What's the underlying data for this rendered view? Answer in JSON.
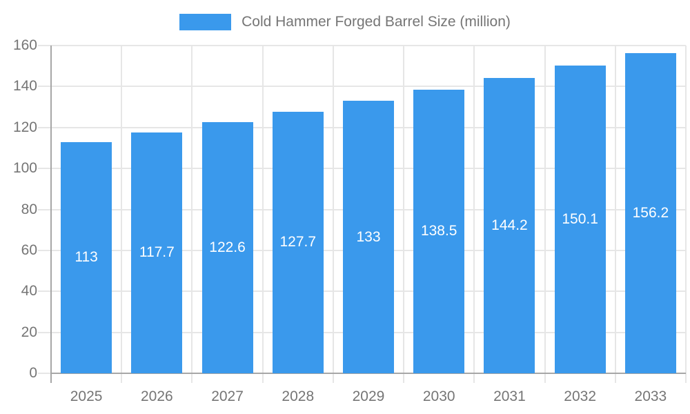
{
  "legend": {
    "label": "Cold Hammer Forged Barrel Size (million)"
  },
  "colors": {
    "bar": "#3a99ec",
    "grid": "#e6e6e6",
    "axis": "#a6a6a6",
    "tick_label": "#757575",
    "bar_label": "#ffffff",
    "legend_text": "#757575",
    "background": "#ffffff"
  },
  "chart_data": {
    "type": "bar",
    "title": "Cold Hammer Forged Barrel Size (million)",
    "categories": [
      "2025",
      "2026",
      "2027",
      "2028",
      "2029",
      "2030",
      "2031",
      "2032",
      "2033"
    ],
    "values": [
      113,
      117.7,
      122.6,
      127.7,
      133,
      138.5,
      144.2,
      150.1,
      156.2
    ],
    "value_labels": [
      "113",
      "117.7",
      "122.6",
      "127.7",
      "133",
      "138.5",
      "144.2",
      "150.1",
      "156.2"
    ],
    "xlabel": "",
    "ylabel": "",
    "ylim": [
      0,
      160
    ],
    "ytick_step": 20,
    "ytick_labels": [
      "0",
      "20",
      "40",
      "60",
      "80",
      "100",
      "120",
      "140",
      "160"
    ],
    "grid": true,
    "legend_position": "top",
    "bar_labels_visible": true,
    "bar_label_position": "center"
  }
}
